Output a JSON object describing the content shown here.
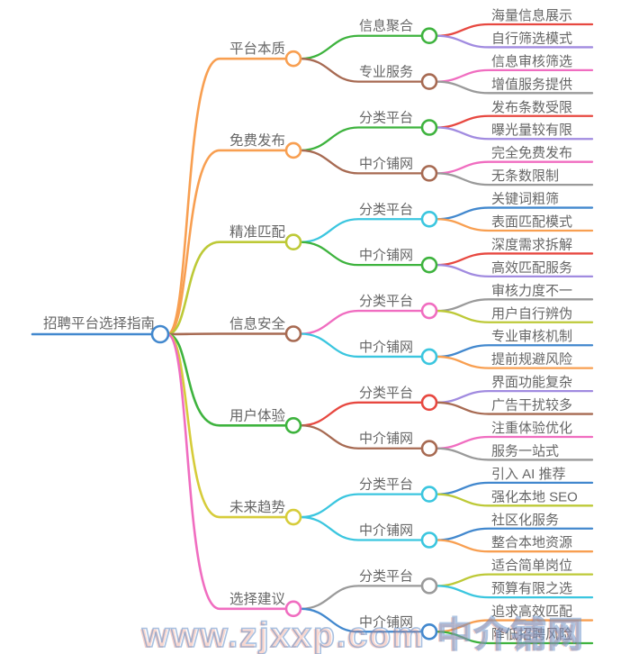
{
  "palette": {
    "blue": "#4288CE",
    "orange": "#F89F51",
    "green": "#3EB33E",
    "brown": "#A76A52",
    "red": "#E74840",
    "purple": "#A18BE0",
    "pink": "#F06DC0",
    "gray": "#9A9A9A",
    "cyan": "#3BC6DF",
    "olive": "#BDC937",
    "yellow": "#D6CC3A",
    "text": "#666666"
  },
  "watermark": {
    "url_text": "www.zjxxp.com",
    "brand_text": "中介铺网"
  },
  "mindmap": {
    "root": {
      "label": "招聘平台选择指南",
      "color": "blue"
    },
    "branches": [
      {
        "label": "平台本质",
        "color": "orange",
        "children": [
          {
            "label": "信息聚合",
            "color": "green",
            "leaves": [
              {
                "label": "海量信息展示",
                "color": "red"
              },
              {
                "label": "自行筛选模式",
                "color": "purple"
              }
            ]
          },
          {
            "label": "专业服务",
            "color": "brown",
            "leaves": [
              {
                "label": "信息审核筛选",
                "color": "pink"
              },
              {
                "label": "增值服务提供",
                "color": "gray"
              }
            ]
          }
        ]
      },
      {
        "label": "免费发布",
        "color": "orange",
        "children": [
          {
            "label": "分类平台",
            "color": "green",
            "leaves": [
              {
                "label": "发布条数受限",
                "color": "red"
              },
              {
                "label": "曝光量较有限",
                "color": "purple"
              }
            ]
          },
          {
            "label": "中介铺网",
            "color": "brown",
            "leaves": [
              {
                "label": "完全免费发布",
                "color": "pink"
              },
              {
                "label": "无条数限制",
                "color": "gray"
              }
            ]
          }
        ]
      },
      {
        "label": "精准匹配",
        "color": "olive",
        "children": [
          {
            "label": "分类平台",
            "color": "cyan",
            "leaves": [
              {
                "label": "关键词粗筛",
                "color": "blue"
              },
              {
                "label": "表面匹配模式",
                "color": "orange"
              }
            ]
          },
          {
            "label": "中介铺网",
            "color": "green",
            "leaves": [
              {
                "label": "深度需求拆解",
                "color": "red"
              },
              {
                "label": "高效匹配服务",
                "color": "purple"
              }
            ]
          }
        ]
      },
      {
        "label": "信息安全",
        "color": "brown",
        "children": [
          {
            "label": "分类平台",
            "color": "pink",
            "leaves": [
              {
                "label": "审核力度不一",
                "color": "gray"
              },
              {
                "label": "用户自行辨伪",
                "color": "olive"
              }
            ]
          },
          {
            "label": "中介铺网",
            "color": "cyan",
            "leaves": [
              {
                "label": "专业审核机制",
                "color": "blue"
              },
              {
                "label": "提前规避风险",
                "color": "orange"
              }
            ]
          }
        ]
      },
      {
        "label": "用户体验",
        "color": "green",
        "children": [
          {
            "label": "分类平台",
            "color": "red",
            "leaves": [
              {
                "label": "界面功能复杂",
                "color": "purple"
              },
              {
                "label": "广告干扰较多",
                "color": "brown"
              }
            ]
          },
          {
            "label": "中介铺网",
            "color": "brown",
            "leaves": [
              {
                "label": "注重体验优化",
                "color": "pink"
              },
              {
                "label": "服务一站式",
                "color": "gray"
              }
            ]
          }
        ]
      },
      {
        "label": "未来趋势",
        "color": "yellow",
        "children": [
          {
            "label": "分类平台",
            "color": "cyan",
            "leaves": [
              {
                "label": "引入 AI 推荐",
                "color": "blue"
              },
              {
                "label": "强化本地 SEO",
                "color": "olive"
              }
            ]
          },
          {
            "label": "中介铺网",
            "color": "cyan",
            "leaves": [
              {
                "label": "社区化服务",
                "color": "blue"
              },
              {
                "label": "整合本地资源",
                "color": "orange"
              }
            ]
          }
        ]
      },
      {
        "label": "选择建议",
        "color": "pink",
        "children": [
          {
            "label": "分类平台",
            "color": "gray",
            "leaves": [
              {
                "label": "适合简单岗位",
                "color": "olive"
              },
              {
                "label": "预算有限之选",
                "color": "cyan"
              }
            ]
          },
          {
            "label": "中介铺网",
            "color": "blue",
            "leaves": [
              {
                "label": "追求高效匹配",
                "color": "orange"
              },
              {
                "label": "降低招聘风险",
                "color": "green"
              }
            ]
          }
        ]
      }
    ]
  }
}
